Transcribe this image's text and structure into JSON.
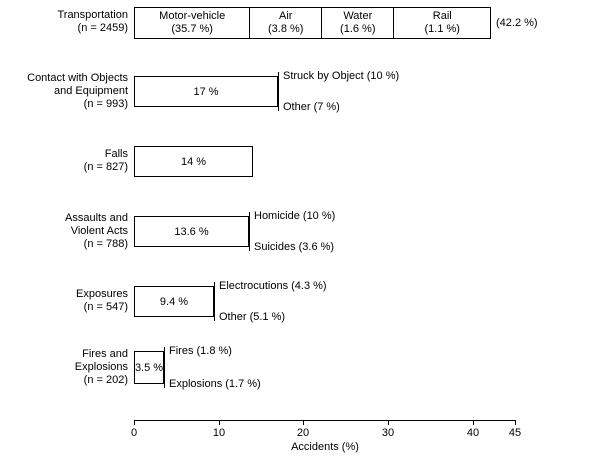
{
  "chart_data": {
    "type": "bar",
    "orientation": "horizontal",
    "title": "",
    "xlabel": "Accidents (%)",
    "xlim": [
      0,
      45
    ],
    "xticks": [
      "0",
      "10",
      "20",
      "30",
      "40",
      "45"
    ],
    "grid": false,
    "legend": "none",
    "categories": [
      {
        "label_lines": [
          "Transportation",
          "(n = 2459)"
        ],
        "value": 42.2,
        "total_label": "(42.2 %)",
        "segments": [
          {
            "name": "Motor-vehicle",
            "pct_label": "(35.7 %)",
            "value": 35.7
          },
          {
            "name": "Air",
            "pct_label": "(3.8 %)",
            "value": 3.8
          },
          {
            "name": "Water",
            "pct_label": "(1.6 %)",
            "value": 1.6
          },
          {
            "name": "Rail",
            "pct_label": "(1.1 %)",
            "value": 1.1
          }
        ]
      },
      {
        "label_lines": [
          "Contact with Objects",
          "and Equipment",
          "(n = 993)"
        ],
        "value": 17,
        "bar_label": "17 %",
        "annotations": [
          "Struck by Object (10 %)",
          "Other (7 %)"
        ]
      },
      {
        "label_lines": [
          "Falls",
          "(n = 827)"
        ],
        "value": 14,
        "bar_label": "14 %",
        "annotations": []
      },
      {
        "label_lines": [
          "Assaults and",
          "Violent Acts",
          "(n = 788)"
        ],
        "value": 13.6,
        "bar_label": "13.6 %",
        "annotations": [
          "Homicide (10 %)",
          "Suicides (3.6 %)"
        ]
      },
      {
        "label_lines": [
          "Exposures",
          "(n = 547)"
        ],
        "value": 9.4,
        "bar_label": "9.4 %",
        "annotations": [
          "Electrocutions (4.3 %)",
          "Other (5.1 %)"
        ]
      },
      {
        "label_lines": [
          "Fires and",
          "Explosions",
          "(n = 202)"
        ],
        "value": 3.5,
        "bar_label": "3.5 %",
        "annotations": [
          "Fires (1.8 %)",
          "Explosions (1.7 %)"
        ]
      }
    ]
  }
}
